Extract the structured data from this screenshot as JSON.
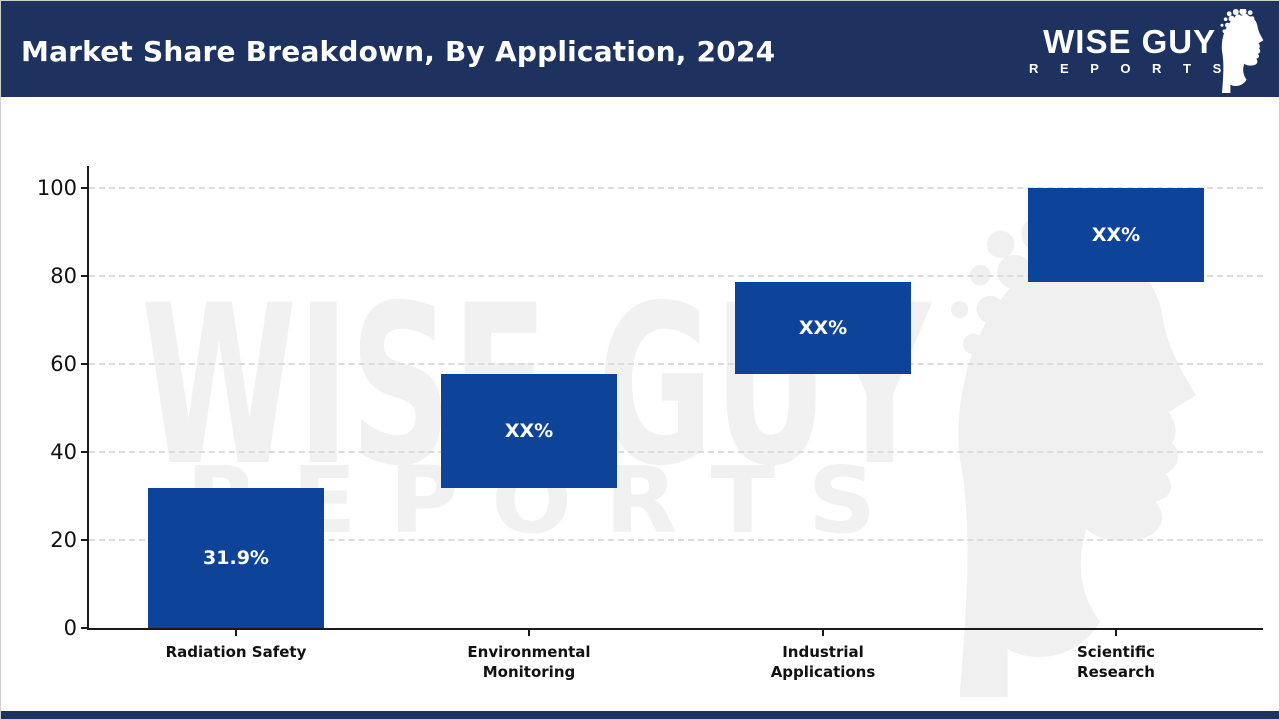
{
  "header": {
    "title": "Market Share Breakdown, By Application, 2024",
    "brand": {
      "name": "WISE GUY",
      "sub": "R E P O R T S"
    },
    "bg_color": "#1e3260"
  },
  "watermark": {
    "line1": "WISE GUY",
    "line2": "R E P O R T S"
  },
  "chart_data": {
    "type": "bar",
    "subtype": "waterfall",
    "title": "Market Share Breakdown, By Application, 2024",
    "xlabel": "",
    "ylabel": "",
    "ylim": [
      0,
      100
    ],
    "yticks": [
      0,
      20,
      40,
      60,
      80,
      100
    ],
    "grid": "horizontal-dashed",
    "legend": "none",
    "bar_color": "#0d4499",
    "bar_label_color": "#ffffff",
    "categories": [
      {
        "name": "Radiation Safety",
        "lines": [
          "Radiation Safety"
        ]
      },
      {
        "name": "Environmental Monitoring",
        "lines": [
          "Environmental",
          "Monitoring"
        ]
      },
      {
        "name": "Industrial Applications",
        "lines": [
          "Industrial",
          "Applications"
        ]
      },
      {
        "name": "Scientific Research",
        "lines": [
          "Scientific",
          "Research"
        ]
      }
    ],
    "segments": [
      {
        "category": "Radiation Safety",
        "label": "31.9%",
        "start": 0,
        "end": 31.9
      },
      {
        "category": "Environmental Monitoring",
        "label": "XX%",
        "start": 31.9,
        "end": 57.7
      },
      {
        "category": "Industrial Applications",
        "label": "XX%",
        "start": 57.7,
        "end": 78.6
      },
      {
        "category": "Scientific Research",
        "label": "XX%",
        "start": 78.6,
        "end": 100
      }
    ]
  }
}
